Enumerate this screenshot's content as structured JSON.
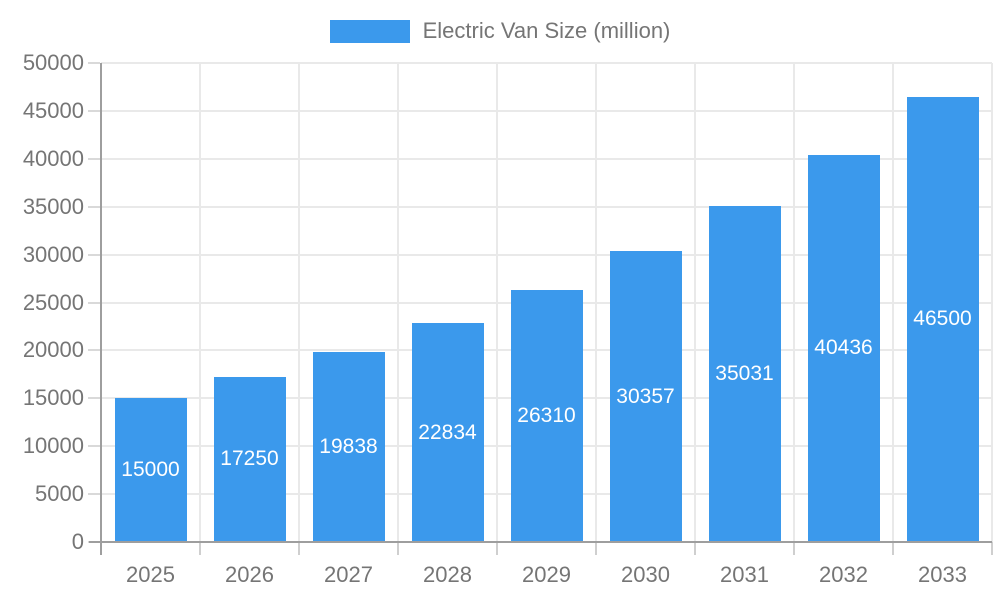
{
  "legend": {
    "label": "Electric Van Size (million)"
  },
  "colors": {
    "bar": "#3b99ec",
    "bar_value_label": "#ffffff",
    "axis_line": "#9e9e9e",
    "gridline": "#e9e9e9",
    "axis_text": "#757575",
    "background": "#ffffff"
  },
  "chart_data": {
    "type": "bar",
    "title": "",
    "series_name": "Electric Van Size (million)",
    "categories": [
      "2025",
      "2026",
      "2027",
      "2028",
      "2029",
      "2030",
      "2031",
      "2032",
      "2033"
    ],
    "values": [
      15000,
      17250,
      19838,
      22834,
      26310,
      30357,
      35031,
      40436,
      46500
    ],
    "xlabel": "",
    "ylabel": "",
    "ylim": [
      0,
      50000
    ],
    "yticks": [
      0,
      5000,
      10000,
      15000,
      20000,
      25000,
      30000,
      35000,
      40000,
      45000,
      50000
    ],
    "grid": true,
    "legend_position": "top",
    "bar_color": "#3b99ec",
    "value_labels": "inside-center-white"
  }
}
